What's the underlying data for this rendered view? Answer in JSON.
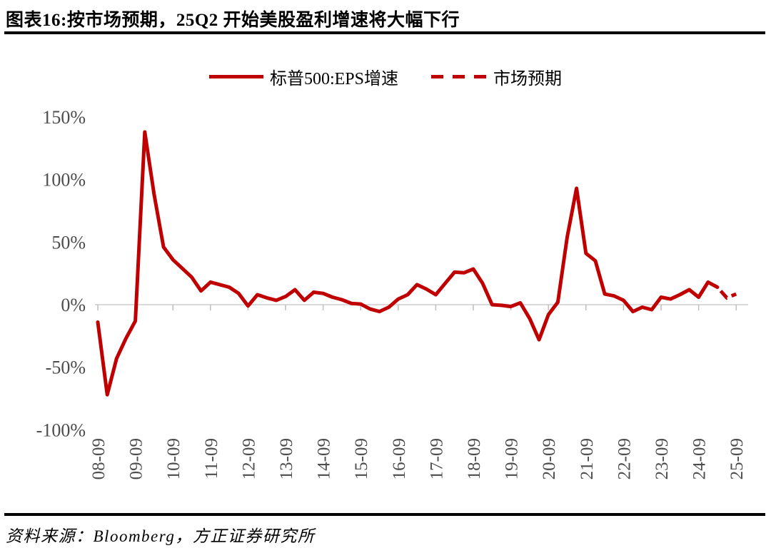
{
  "source": "资料来源：Bloomberg，方正证券研究所",
  "colors": {
    "series": "#c00000",
    "axis_line": "#d9d9d9",
    "tick": "#bfbfbf",
    "tick_label": "#4d4d4d",
    "divider": "#000000"
  },
  "chart_data": {
    "type": "line",
    "title": "图表16:按市场预期，25Q2 开始美股盈利增速将大幅下行",
    "xlabel": "",
    "ylabel": "",
    "x_labels": [
      "08-09",
      "09-09",
      "10-09",
      "11-09",
      "12-09",
      "13-09",
      "14-09",
      "15-09",
      "16-09",
      "17-09",
      "18-09",
      "19-09",
      "20-09",
      "21-09",
      "22-09",
      "23-09",
      "24-09",
      "25-09"
    ],
    "x_labels_rotation": -90,
    "points_per_x_label": 4,
    "y_ticks": [
      "150%",
      "100%",
      "50%",
      "0%",
      "-50%",
      "-100%"
    ],
    "ylim": [
      -100,
      150
    ],
    "y_unit": "%",
    "gridlines": "none",
    "zero_axis_line": true,
    "legend_position": "top",
    "series": [
      {
        "name": "标普500:EPS增速",
        "style": "solid",
        "start_index": 0,
        "values": [
          -14,
          -72,
          -43,
          -27,
          -13,
          138,
          88,
          46,
          36,
          29,
          22,
          11,
          18,
          16,
          14,
          9,
          -1,
          8,
          5.5,
          3.5,
          6.5,
          12,
          3.5,
          10,
          9,
          6,
          4,
          1,
          0.5,
          -3.5,
          -5.5,
          -2,
          4.5,
          8,
          16,
          12.5,
          8,
          17,
          26,
          25.5,
          28.5,
          17,
          0,
          -0.5,
          -1.5,
          1.5,
          -11,
          -28,
          -8,
          2,
          54,
          93,
          41,
          35,
          8.5,
          7,
          3.5,
          -5.5,
          -2,
          -4,
          6,
          4.5,
          8,
          12,
          6,
          18,
          14
        ]
      },
      {
        "name": "市场预期",
        "style": "dashed",
        "start_index": 66,
        "values": [
          14,
          5.5,
          8.5
        ]
      }
    ]
  }
}
